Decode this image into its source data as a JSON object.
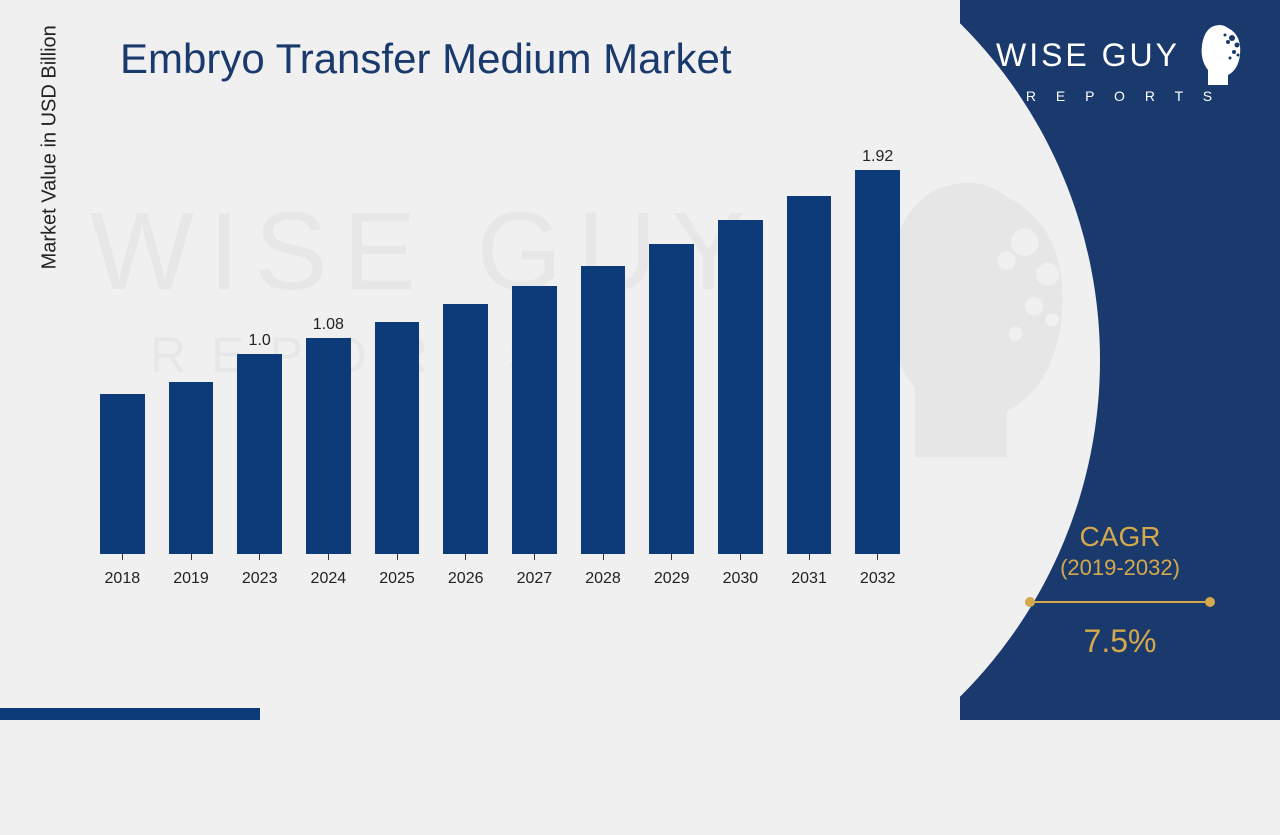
{
  "title": "Embryo Transfer Medium Market",
  "logo": {
    "line1": "WISE GUY",
    "line2": "R E P O R T S"
  },
  "cagr": {
    "label": "CAGR",
    "years": "(2019-2032)",
    "value": "7.5%",
    "color": "#d4a84b"
  },
  "chart": {
    "type": "bar",
    "ylabel": "Market Value in USD Billion",
    "ymax": 2.0,
    "bar_color": "#0d3b7a",
    "background_color": "#f0f0f0",
    "categories": [
      "2018",
      "2019",
      "2023",
      "2024",
      "2025",
      "2026",
      "2027",
      "2028",
      "2029",
      "2030",
      "2031",
      "2032"
    ],
    "values": [
      0.8,
      0.86,
      1.0,
      1.08,
      1.16,
      1.25,
      1.34,
      1.44,
      1.55,
      1.67,
      1.79,
      1.92
    ],
    "shown_labels": {
      "2": "1.0",
      "3": "1.08",
      "11": "1.92"
    },
    "bar_gap": 24,
    "label_fontsize": 16,
    "title_fontsize": 42,
    "title_color": "#1a3a6e"
  },
  "watermark": {
    "line1": "WISE GUY",
    "line2": "REPORTS"
  },
  "panel_color": "#1a3a6e"
}
